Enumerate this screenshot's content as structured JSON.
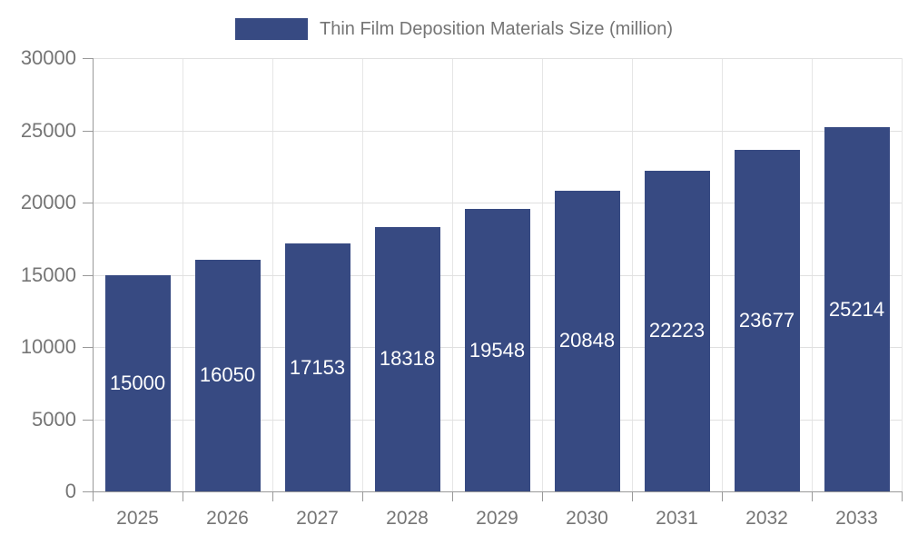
{
  "chart_data": {
    "type": "bar",
    "title": "Thin Film Deposition Materials Size (million)",
    "legend": {
      "label": "Thin Film Deposition Materials Size (million)",
      "position": "top-center"
    },
    "categories": [
      "2025",
      "2026",
      "2027",
      "2028",
      "2029",
      "2030",
      "2031",
      "2032",
      "2033"
    ],
    "values": [
      15000,
      16050,
      17153,
      18318,
      19548,
      20848,
      22223,
      23677,
      25214
    ],
    "xlabel": "",
    "ylabel": "",
    "ylim": [
      0,
      30000
    ],
    "yticks": [
      0,
      5000,
      10000,
      15000,
      20000,
      25000,
      30000
    ],
    "grid": true,
    "value_labels": {
      "position": "inside-middle",
      "color": "#FFFFFF"
    },
    "colors": {
      "bar": "#374A82",
      "text": "#757575",
      "axis": "#999999",
      "h_gridline": "#E0E0E0",
      "v_gridline": "#E6E6E6",
      "background": "#FFFFFF"
    }
  }
}
